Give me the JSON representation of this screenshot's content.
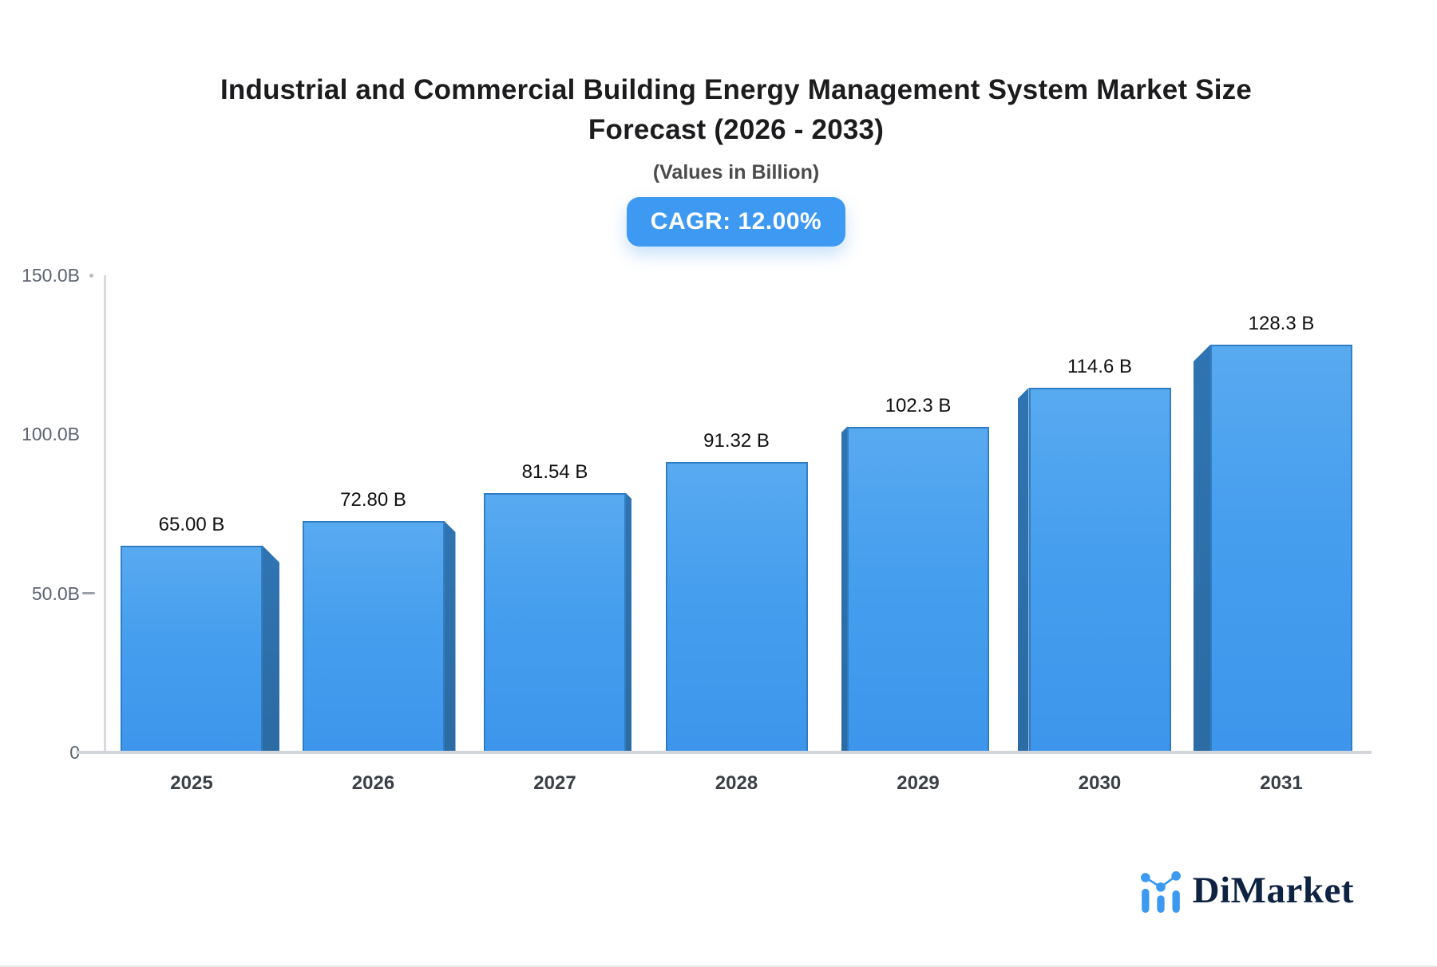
{
  "header": {
    "title_lines": [
      "Industrial and Commercial Building Energy Management System Market Size",
      "Forecast (2026 - 2033)"
    ],
    "subtitle": "(Values in Billion)",
    "cagr_badge": "CAGR: 12.00%"
  },
  "chart_data": {
    "type": "bar",
    "title": "Industrial and Commercial Building Energy Management System Market Size Forecast (2026 - 2033)",
    "subtitle": "(Values in Billion)",
    "unit": "Billion",
    "cagr_percent": 12.0,
    "categories": [
      "2025",
      "2026",
      "2027",
      "2028",
      "2029",
      "2030",
      "2031"
    ],
    "values": [
      65.0,
      72.8,
      81.54,
      91.32,
      102.3,
      114.6,
      128.3
    ],
    "bar_labels": [
      "65.00 B",
      "72.80 B",
      "81.54 B",
      "91.32 B",
      "102.3 B",
      "114.6 B",
      "128.3 B"
    ],
    "ylim": [
      0,
      150
    ],
    "yticks": [
      {
        "label": "150.0B",
        "value": 150,
        "mark": "dot"
      },
      {
        "label": "100.0B",
        "value": 100,
        "mark": "none"
      },
      {
        "label": "50.0B",
        "value": 50,
        "mark": "dash"
      },
      {
        "label": "0",
        "value": 0,
        "mark": "dash"
      }
    ],
    "grid": false,
    "legend": false,
    "bar_color": "#3e96ec",
    "bar_color_light": "#58aaf0",
    "bar_side_color": "#2d6ea9"
  },
  "logo": {
    "text": "DiMarket",
    "icon": "bar-chart-logo-icon",
    "navy": "#0e2342",
    "blue": "#3b99f0"
  },
  "colors": {
    "badge_bg": "#3d99f2",
    "axis_gray": "#d6d8dc",
    "title_color": "#1c1c1e"
  }
}
